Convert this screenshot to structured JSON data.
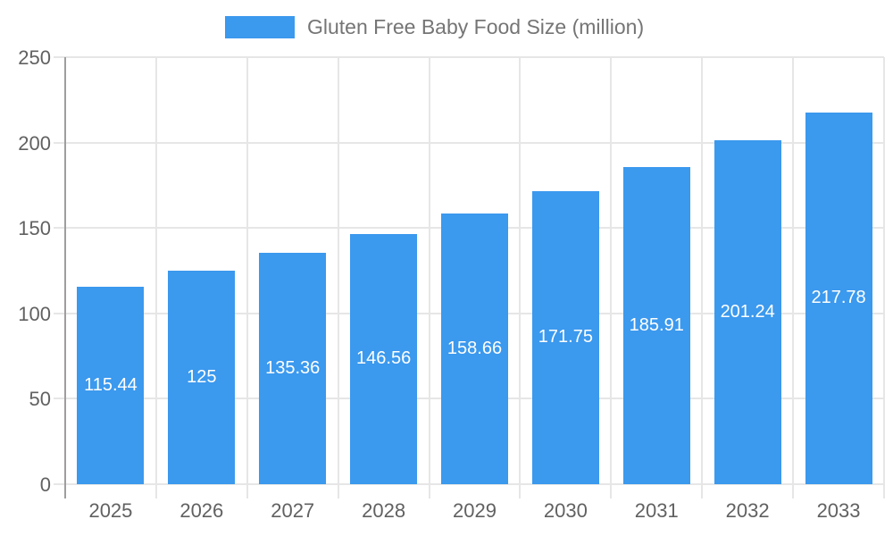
{
  "legend": {
    "label": "Gluten Free Baby Food Size (million)"
  },
  "colors": {
    "bar": "#3b99ee",
    "grid": "#e6e6e6",
    "axis": "#9e9e9e",
    "tick_label": "#616161",
    "legend_text": "#757575",
    "value_label": "#ffffff",
    "background": "#ffffff"
  },
  "chart_data": {
    "type": "bar",
    "title": "Gluten Free Baby Food Size (million)",
    "categories": [
      "2025",
      "2026",
      "2027",
      "2028",
      "2029",
      "2030",
      "2031",
      "2032",
      "2033"
    ],
    "values": [
      115.44,
      125,
      135.36,
      146.56,
      158.66,
      171.75,
      185.91,
      201.24,
      217.78
    ],
    "value_labels": [
      "115.44",
      "125",
      "135.36",
      "146.56",
      "158.66",
      "171.75",
      "185.91",
      "201.24",
      "217.78"
    ],
    "series_name": "Gluten Free Baby Food Size (million)",
    "xlabel": "",
    "ylabel": "",
    "ylim": [
      0,
      250
    ],
    "yticks": [
      0,
      50,
      100,
      150,
      200,
      250
    ],
    "ytick_labels": [
      "0",
      "50",
      "100",
      "150",
      "200",
      "250"
    ],
    "grid": true,
    "legend_position": "top",
    "value_label_position": "center-inside"
  }
}
